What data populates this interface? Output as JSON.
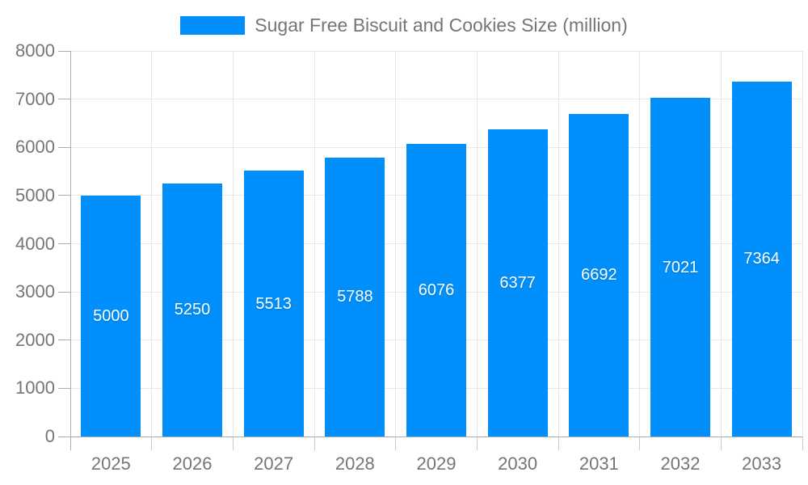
{
  "legend": {
    "label": "Sugar Free Biscuit and Cookies Size (million)"
  },
  "chart_data": {
    "type": "bar",
    "title": "Sugar Free Biscuit and Cookies Size (million)",
    "categories": [
      "2025",
      "2026",
      "2027",
      "2028",
      "2029",
      "2030",
      "2031",
      "2032",
      "2033"
    ],
    "values": [
      5000,
      5250,
      5513,
      5788,
      6076,
      6377,
      6692,
      7021,
      7364
    ],
    "xlabel": "",
    "ylabel": "",
    "ylim": [
      0,
      8000
    ],
    "ytick_step": 1000,
    "ytick_labels": [
      "0",
      "1000",
      "2000",
      "3000",
      "4000",
      "5000",
      "6000",
      "7000",
      "8000"
    ],
    "grid": true,
    "legend_position": "top",
    "value_labels": "inside-center",
    "colors": {
      "bar": "#008FFB",
      "value_label": "#ffffff",
      "axis_label": "#757575",
      "grid_line": "#e7e7e7",
      "axis_line": "#adadad",
      "minor_tick": "#c9c9c9"
    }
  }
}
